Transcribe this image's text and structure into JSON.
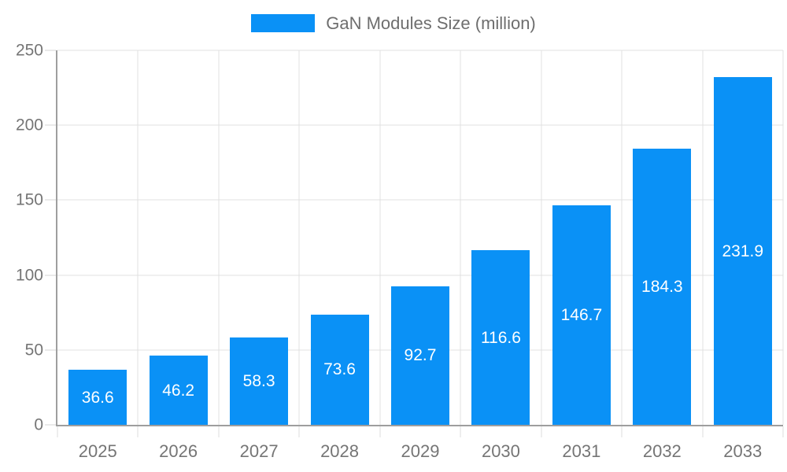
{
  "legend": {
    "series_label": "GaN Modules Size (million)"
  },
  "colors": {
    "bar_fill": "#0a91f6",
    "axis_line": "#9e9e9e",
    "gridline": "#e0e0e0",
    "tick_mark": "#d9d9d9",
    "axis_tick_label_text": "#757575",
    "legend_text": "#6e6e6e",
    "bar_value_text": "#ffffff",
    "background": "#ffffff"
  },
  "chart_data": {
    "type": "bar",
    "title": "GaN Modules Size (million)",
    "categories": [
      "2025",
      "2026",
      "2027",
      "2028",
      "2029",
      "2030",
      "2031",
      "2032",
      "2033"
    ],
    "series": [
      {
        "name": "GaN Modules Size (million)",
        "values": [
          36.6,
          46.2,
          58.3,
          73.6,
          92.7,
          116.6,
          146.7,
          184.3,
          231.9
        ]
      }
    ],
    "value_labels": [
      "36.6",
      "46.2",
      "58.3",
      "73.6",
      "92.7",
      "116.6",
      "146.7",
      "184.3",
      "231.9"
    ],
    "xlabel": "",
    "ylabel": "",
    "ylim": [
      0,
      250
    ],
    "yticks": [
      0,
      50,
      100,
      150,
      200,
      250
    ],
    "grid": true,
    "legend_position": "top-center",
    "value_label_position": "inside-center"
  }
}
